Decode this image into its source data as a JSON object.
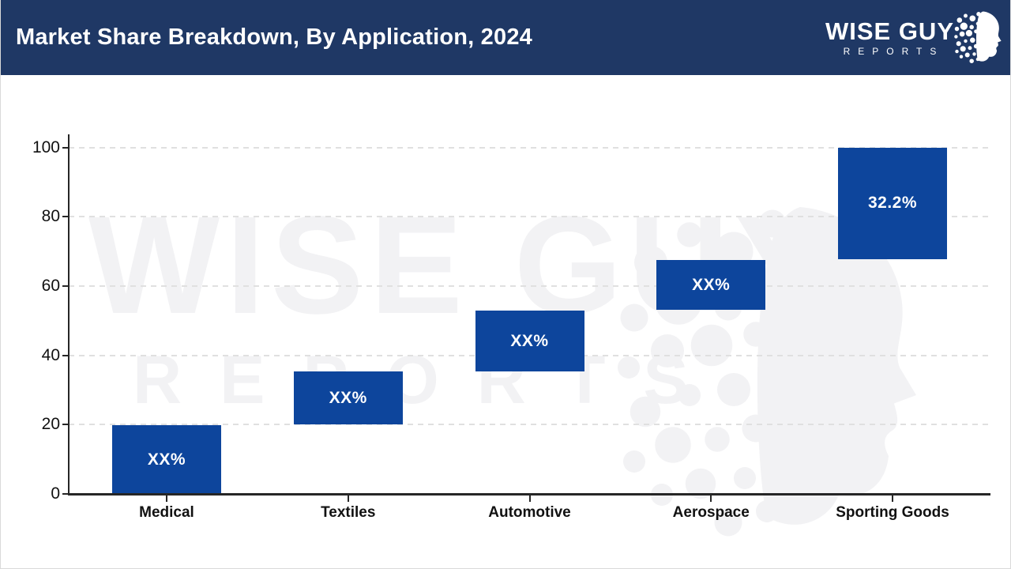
{
  "header": {
    "title": "Market Share Breakdown, By Application, 2024"
  },
  "logo": {
    "line1": "WISE GUY",
    "line2": "REPORTS"
  },
  "watermark": {
    "line1": "WISE GUY",
    "line2": "REPORTS"
  },
  "chart_data": {
    "type": "bar",
    "variant": "floating-waterfall",
    "title": "Market Share Breakdown, By Application, 2024",
    "categories": [
      "Medical",
      "Textiles",
      "Automotive",
      "Aerospace",
      "Sporting Goods"
    ],
    "segments": [
      {
        "category": "Medical",
        "start": 0,
        "end": 19.8,
        "label": "XX%"
      },
      {
        "category": "Textiles",
        "start": 20.1,
        "end": 35.3,
        "label": "XX%"
      },
      {
        "category": "Automotive",
        "start": 35.4,
        "end": 52.8,
        "label": "XX%"
      },
      {
        "category": "Aerospace",
        "start": 53.1,
        "end": 67.4,
        "label": "XX%"
      },
      {
        "category": "Sporting Goods",
        "start": 67.8,
        "end": 100,
        "label": "32.2%"
      }
    ],
    "yticks": [
      0,
      20,
      40,
      60,
      80,
      100
    ],
    "ylim": [
      0,
      104
    ],
    "xlabel": "",
    "ylabel": "",
    "grid": "horizontal-dashed",
    "legend": "none",
    "bar_color": "#0d459c",
    "bar_label_color": "#ffffff",
    "axis_color": "#262626",
    "header_bg": "#1f3865",
    "gridline_color": "#e0e0e0"
  }
}
